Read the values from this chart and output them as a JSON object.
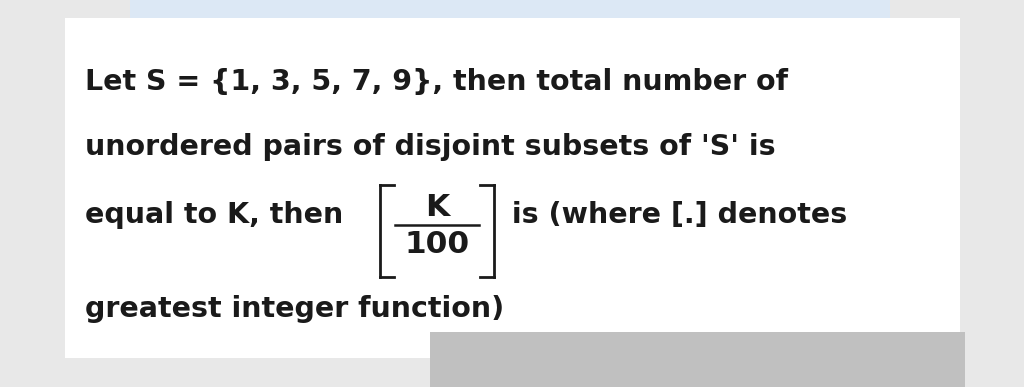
{
  "background_color": "#e8e8e8",
  "inner_background": "#ffffff",
  "text_color": "#1a1a1a",
  "gray_box_color": "#c0c0c0",
  "line1": "Let S = {1, 3, 5, 7, 9}, then total number of",
  "line2": "unordered pairs of disjoint subsets of ‘S’ is",
  "line2b": "unordered pairs of disjoint subsets of 'S' is",
  "line3_left": "equal to K, then ",
  "line3_frac_num": "K",
  "line3_frac_den": "100",
  "line3_right": " is (where [.] denotes",
  "line4": "greatest integer function)",
  "figsize": [
    10.24,
    3.87
  ],
  "dpi": 100,
  "fontsize": 20.5
}
